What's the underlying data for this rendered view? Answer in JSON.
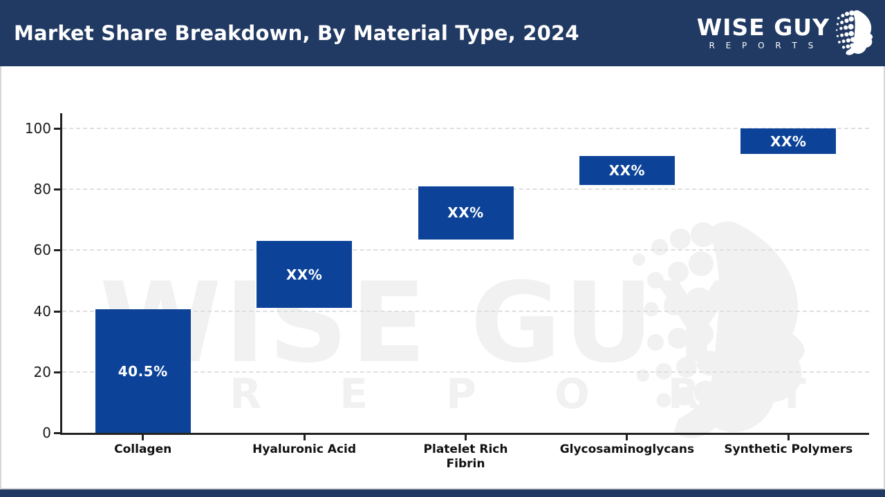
{
  "header": {
    "title": "Market Share Breakdown, By Material Type, 2024",
    "logo": {
      "line1": "WISE GUY",
      "line2": "R E P O R T S"
    }
  },
  "watermark": {
    "line1": "WISE GUY",
    "line2": "R E P O R T S"
  },
  "chart_data": {
    "type": "bar",
    "subtype": "floating-waterfall",
    "title": "Market Share Breakdown, By Material Type, 2024",
    "unit": "%",
    "categories": [
      "Collagen",
      "Hyaluronic Acid",
      "Platelet Rich\nFibrin",
      "Glycosaminoglycans",
      "Synthetic Polymers"
    ],
    "bars": [
      {
        "category": "Collagen",
        "start": 0,
        "end": 40.5,
        "value": 40.5,
        "label": "40.5%"
      },
      {
        "category": "Hyaluronic Acid",
        "start": 41,
        "end": 63,
        "value": 22,
        "label": "XX%"
      },
      {
        "category": "Platelet Rich Fibrin",
        "start": 63.5,
        "end": 81,
        "value": 17.5,
        "label": "XX%"
      },
      {
        "category": "Glycosaminoglycans",
        "start": 81.5,
        "end": 91,
        "value": 9.5,
        "label": "XX%"
      },
      {
        "category": "Synthetic Polymers",
        "start": 91.5,
        "end": 100,
        "value": 8.5,
        "label": "XX%"
      }
    ],
    "yticks": [
      0,
      20,
      40,
      60,
      80,
      100
    ],
    "ylim": [
      0,
      105
    ],
    "grid": "horizontal-dashed",
    "legend": "none",
    "bar_color": "#0c4398",
    "bar_label_color": "#ffffff",
    "axis_color": "#222222",
    "gridline_color": "#dedede"
  },
  "colors": {
    "header_bg": "#213a63",
    "footer_bg": "#213a63",
    "watermark": "#f1f1f2",
    "frame_border": "#d6d6d6"
  }
}
